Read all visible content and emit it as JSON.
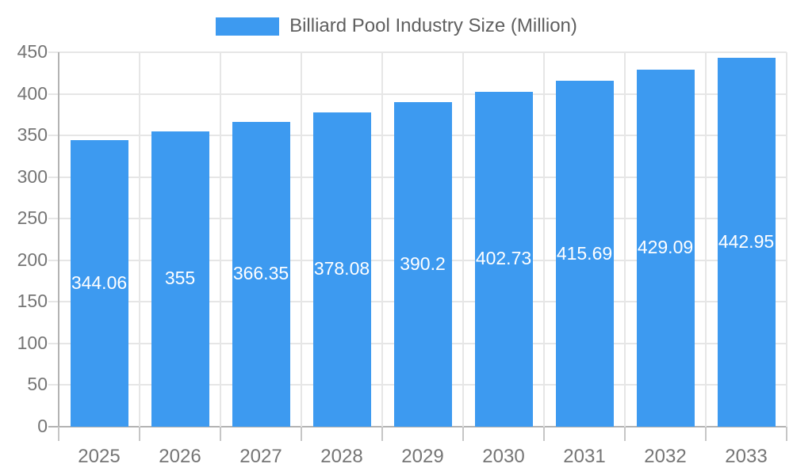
{
  "chart_data": {
    "type": "bar",
    "title": "Billiard Pool Industry Size (Million)",
    "categories": [
      "2025",
      "2026",
      "2027",
      "2028",
      "2029",
      "2030",
      "2031",
      "2032",
      "2033"
    ],
    "values": [
      344.06,
      355,
      366.35,
      378.08,
      390.2,
      402.73,
      415.69,
      429.09,
      442.95
    ],
    "value_labels": [
      "344.06",
      "355",
      "366.35",
      "378.08",
      "390.2",
      "402.73",
      "415.69",
      "429.09",
      "442.95"
    ],
    "xlabel": "",
    "ylabel": "",
    "ylim": [
      0,
      450
    ],
    "yticks": [
      0,
      50,
      100,
      150,
      200,
      250,
      300,
      350,
      400,
      450
    ],
    "grid": true,
    "legend_position": "top",
    "colors": {
      "bar": "#3d9af0",
      "value_label": "#ffffff",
      "axis_text": "#757575",
      "legend_text": "#5f5f5f",
      "gridline": "#e6e6e6",
      "axis_line": "#b3b3b3",
      "tick_mark": "#c6c6c6",
      "background": "#ffffff"
    }
  }
}
